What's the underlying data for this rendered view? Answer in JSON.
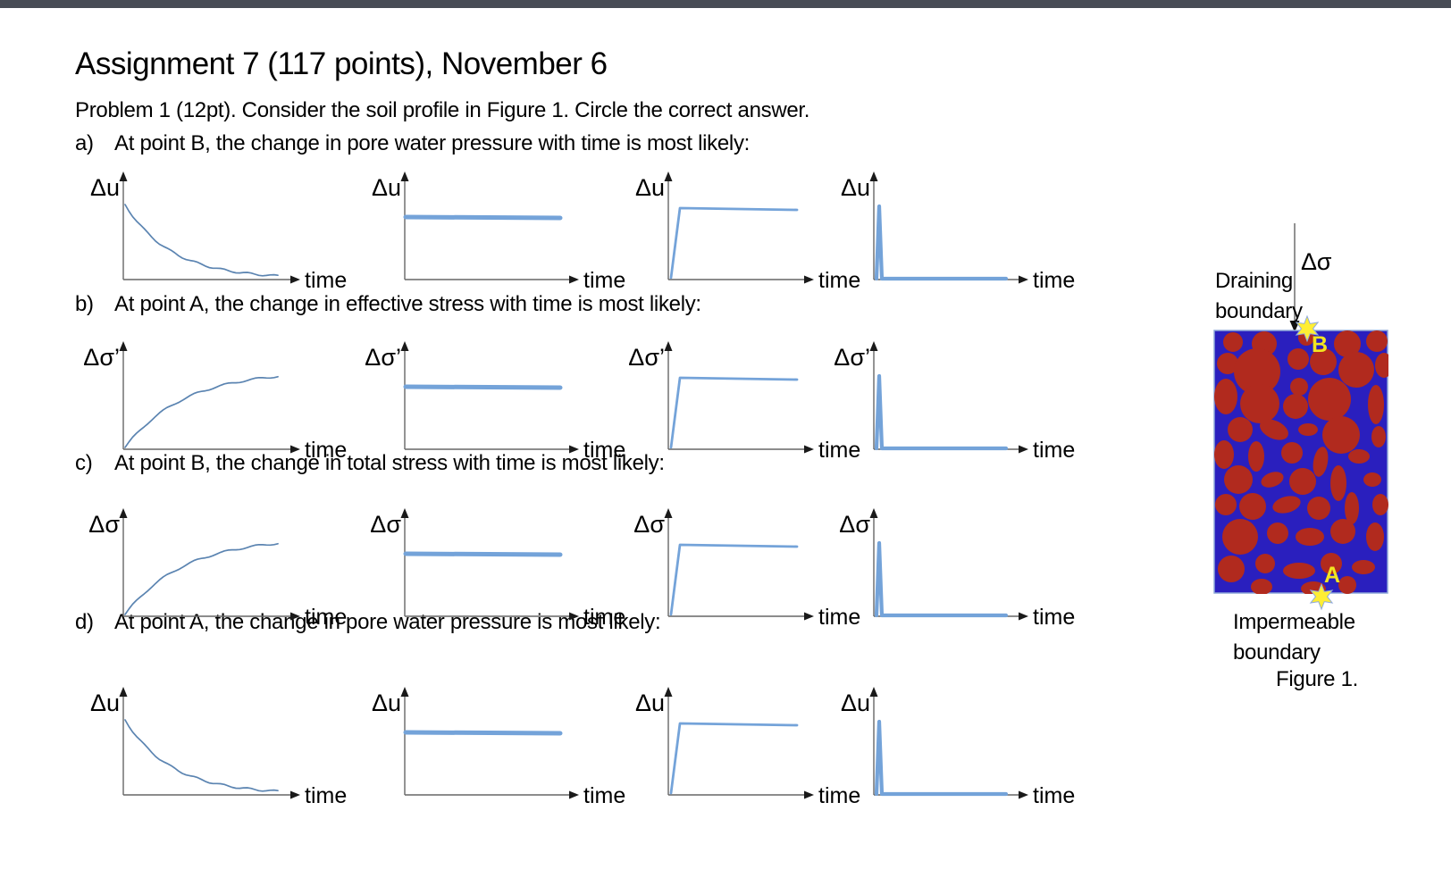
{
  "page": {
    "title": "Assignment 7 (117 points), November 6",
    "problem": "Problem 1 (12pt). Consider the soil profile in Figure 1. Circle the correct answer."
  },
  "labels": {
    "time": "time"
  },
  "questions": [
    {
      "label": "a)",
      "text": "At point B, the change in pore water pressure with time is most likely:",
      "ylabel": "Δu",
      "options": [
        "decay",
        "constant",
        "rise",
        "spike"
      ]
    },
    {
      "label": "b)",
      "text": "At point A, the change in effective stress with time is most likely:",
      "ylabel": "Δσ’",
      "options": [
        "growth",
        "constant",
        "rise",
        "spike"
      ]
    },
    {
      "label": "c)",
      "text": "At point B, the change in total stress with time is most likely:",
      "ylabel": "Δσ",
      "options": [
        "growth",
        "constant",
        "rise",
        "spike"
      ]
    },
    {
      "label": "d)",
      "text": "At point A, the change in pore water pressure is most likely:",
      "ylabel": "Δu",
      "options": [
        "decay",
        "constant",
        "rise",
        "spike"
      ]
    }
  ],
  "curve_legend": {
    "decay": "exponential decay from initial value to zero",
    "growth": "saturating rise from zero to plateau",
    "constant": "constant nonzero value over time",
    "rise": "immediate steep rise then constant plateau",
    "spike": "instant spike then immediately back to zero"
  },
  "colors": {
    "topbar": "#474c55",
    "axis": "#666666",
    "curve_thin": "#5b84b1",
    "curve_thick": "#74a3d9",
    "soil_water": "#2a1fbe",
    "soil_particle": "#b12a1e",
    "soil_border": "#8ea9d8",
    "star_fill": "#ffee33",
    "star_outline": "#8faadc",
    "point_label": "#f2e520"
  },
  "figure": {
    "load_label": "Δσ",
    "top_boundary": "Draining boundary",
    "bottom_boundary": "Impermeable boundary",
    "caption": "Figure 1.",
    "point_top": "B",
    "point_bottom": "A",
    "particles": [
      [
        22,
        14,
        11,
        11,
        0
      ],
      [
        57,
        16,
        14,
        14,
        0
      ],
      [
        104,
        9,
        9,
        9,
        0
      ],
      [
        150,
        16,
        15,
        15,
        0
      ],
      [
        183,
        13,
        12,
        12,
        0
      ],
      [
        16,
        38,
        12,
        12,
        0
      ],
      [
        49,
        47,
        26,
        26,
        0
      ],
      [
        95,
        33,
        12,
        12,
        0
      ],
      [
        123,
        36,
        15,
        15,
        0
      ],
      [
        160,
        45,
        20,
        20,
        0
      ],
      [
        191,
        40,
        10,
        14,
        0
      ],
      [
        14,
        75,
        13,
        20,
        0
      ],
      [
        52,
        83,
        22,
        22,
        0
      ],
      [
        96,
        64,
        10,
        10,
        0
      ],
      [
        92,
        86,
        14,
        14,
        0
      ],
      [
        130,
        78,
        24,
        24,
        0
      ],
      [
        182,
        84,
        9,
        22,
        0
      ],
      [
        30,
        112,
        14,
        14,
        0
      ],
      [
        68,
        112,
        17,
        10,
        25
      ],
      [
        106,
        112,
        11,
        7,
        0
      ],
      [
        143,
        118,
        21,
        21,
        0
      ],
      [
        185,
        120,
        8,
        12,
        0
      ],
      [
        12,
        140,
        11,
        16,
        0
      ],
      [
        48,
        142,
        9,
        17,
        0
      ],
      [
        88,
        138,
        12,
        12,
        0
      ],
      [
        120,
        148,
        8,
        17,
        10
      ],
      [
        163,
        142,
        12,
        8,
        0
      ],
      [
        28,
        168,
        16,
        16,
        0
      ],
      [
        66,
        168,
        13,
        8,
        -20
      ],
      [
        100,
        170,
        15,
        15,
        0
      ],
      [
        140,
        172,
        9,
        20,
        0
      ],
      [
        178,
        168,
        10,
        8,
        0
      ],
      [
        14,
        196,
        12,
        12,
        0
      ],
      [
        44,
        198,
        15,
        15,
        0
      ],
      [
        82,
        196,
        16,
        9,
        -15
      ],
      [
        118,
        200,
        13,
        13,
        0
      ],
      [
        155,
        200,
        8,
        18,
        0
      ],
      [
        187,
        196,
        9,
        12,
        0
      ],
      [
        30,
        232,
        20,
        20,
        0
      ],
      [
        72,
        228,
        12,
        12,
        0
      ],
      [
        108,
        232,
        16,
        10,
        0
      ],
      [
        145,
        226,
        14,
        14,
        0
      ],
      [
        181,
        232,
        10,
        16,
        0
      ],
      [
        20,
        268,
        15,
        15,
        0
      ],
      [
        58,
        262,
        11,
        11,
        0
      ],
      [
        96,
        270,
        18,
        9,
        0
      ],
      [
        132,
        262,
        12,
        12,
        0
      ],
      [
        168,
        266,
        13,
        8,
        0
      ],
      [
        54,
        288,
        12,
        9,
        0
      ],
      [
        112,
        290,
        14,
        8,
        0
      ],
      [
        150,
        286,
        10,
        10,
        0
      ]
    ]
  }
}
